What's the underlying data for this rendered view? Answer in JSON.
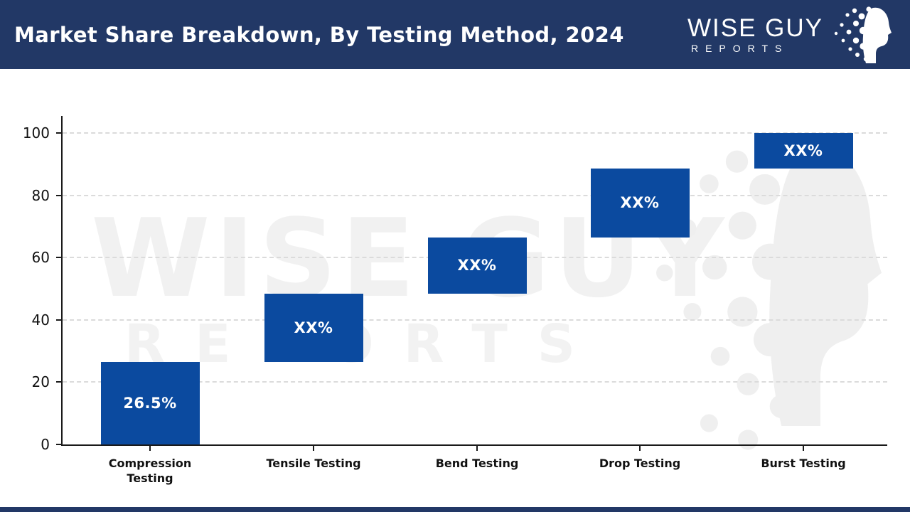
{
  "header": {
    "title": "Market Share Breakdown, By Testing Method, 2024",
    "logo": {
      "wordmark": "WISE GUY",
      "subtitle": "REPORTS"
    },
    "bg_color": "#223866"
  },
  "watermark": {
    "wordmark": "WISE GUY",
    "subtitle": "REPORTS"
  },
  "chart_data": {
    "type": "bar",
    "subtype": "waterfall",
    "title": "Market Share Breakdown, By Testing Method, 2024",
    "categories": [
      "Compression Testing",
      "Tensile Testing",
      "Bend Testing",
      "Drop Testing",
      "Burst Testing"
    ],
    "segments": [
      {
        "category": "Compression Testing",
        "start": 0,
        "end": 26.5,
        "label": "26.5%"
      },
      {
        "category": "Tensile Testing",
        "start": 26.5,
        "end": 48.5,
        "label": "XX%"
      },
      {
        "category": "Bend Testing",
        "start": 48.5,
        "end": 66.5,
        "label": "XX%"
      },
      {
        "category": "Drop Testing",
        "start": 66.5,
        "end": 88.5,
        "label": "XX%"
      },
      {
        "category": "Burst Testing",
        "start": 88.5,
        "end": 100,
        "label": "XX%"
      }
    ],
    "y_ticks": [
      0,
      20,
      40,
      60,
      80,
      100
    ],
    "ylim": [
      0,
      105
    ],
    "grid": "horizontal-dashed",
    "bar_color": "#0B4A9F",
    "value_label_color": "#ffffff",
    "xlabel": "",
    "ylabel": ""
  }
}
